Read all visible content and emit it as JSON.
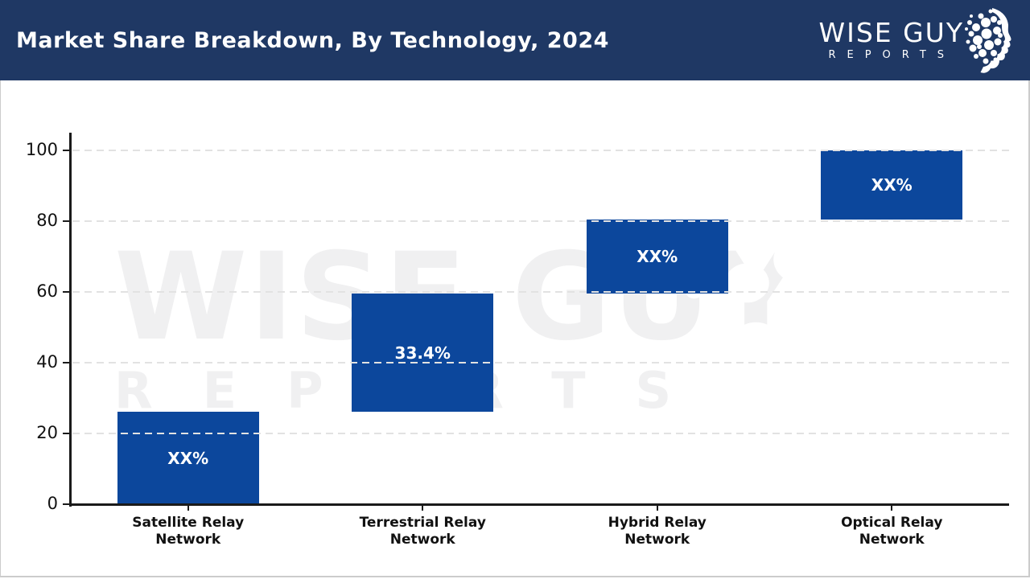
{
  "header": {
    "title": "Market Share Breakdown, By Technology, 2024",
    "logo": {
      "line1": "WISE GUY",
      "line2": "REPORTS"
    }
  },
  "watermark": {
    "line1": "WISE GUY",
    "line2": "REPORTS"
  },
  "colors": {
    "header_bg": "#1f3864",
    "bar_fill": "#0c479c",
    "bar_label": "#ffffff",
    "grid": "#e2e2e2",
    "axis": "#1a1a1a",
    "watermark": "#f0f0f1",
    "page_bg": "#ffffff",
    "edge_line": "#cccccc"
  },
  "chart_data": {
    "type": "bar",
    "subtype": "waterfall",
    "title": "Market Share Breakdown, By Technology, 2024",
    "xlabel": "",
    "ylabel": "",
    "categories": [
      "Satellite Relay Network",
      "Terrestrial Relay Network",
      "Hybrid Relay Network",
      "Optical Relay Network"
    ],
    "category_lines": [
      [
        "Satellite Relay",
        "Network"
      ],
      [
        "Terrestrial Relay",
        "Network"
      ],
      [
        "Hybrid Relay",
        "Network"
      ],
      [
        "Optical Relay",
        "Network"
      ]
    ],
    "bars": [
      {
        "category": "Satellite Relay Network",
        "start": 0,
        "end": 26.1,
        "label": "XX%"
      },
      {
        "category": "Terrestrial Relay Network",
        "start": 26.1,
        "end": 59.5,
        "label": "33.4%"
      },
      {
        "category": "Hybrid Relay Network",
        "start": 59.5,
        "end": 80.4,
        "label": "XX%"
      },
      {
        "category": "Optical Relay Network",
        "start": 80.4,
        "end": 100,
        "label": "XX%"
      }
    ],
    "yticks": [
      0,
      20,
      40,
      60,
      80,
      100
    ],
    "ylim": [
      0,
      105
    ],
    "grid": "horizontal-dashed-over-bars",
    "legend": null
  }
}
